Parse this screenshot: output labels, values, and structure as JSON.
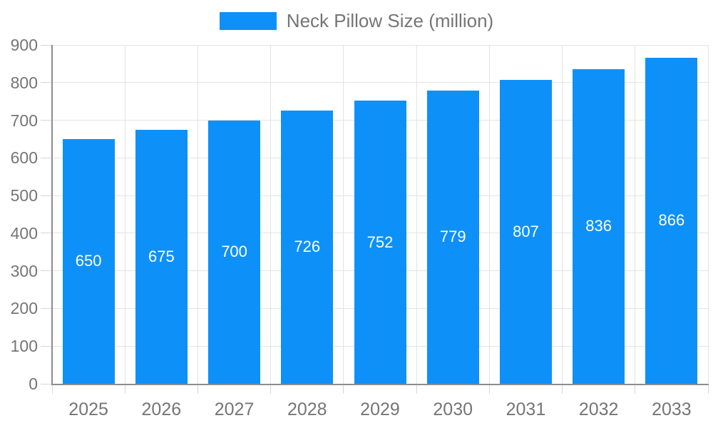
{
  "legend": {
    "label": "Neck Pillow Size (million)",
    "swatch_color": "#0e90f9"
  },
  "chart_data": {
    "type": "bar",
    "title": "",
    "categories": [
      "2025",
      "2026",
      "2027",
      "2028",
      "2029",
      "2030",
      "2031",
      "2032",
      "2033"
    ],
    "series": [
      {
        "name": "Neck Pillow Size (million)",
        "values": [
          650,
          675,
          700,
          726,
          752,
          779,
          807,
          836,
          866
        ]
      }
    ],
    "xlabel": "",
    "ylabel": "",
    "ylim": [
      0,
      900
    ],
    "ytick_step": 100,
    "grid": true,
    "legend_position": "top-center",
    "value_labels": "inside-center",
    "colors": {
      "bar": "#0e90f9",
      "value_text": "#ffffff",
      "axis": "#8c8c8c",
      "grid": "#e3e3e3",
      "tick": "#d6d6d6",
      "text": "#757575",
      "background": "#ffffff"
    }
  }
}
